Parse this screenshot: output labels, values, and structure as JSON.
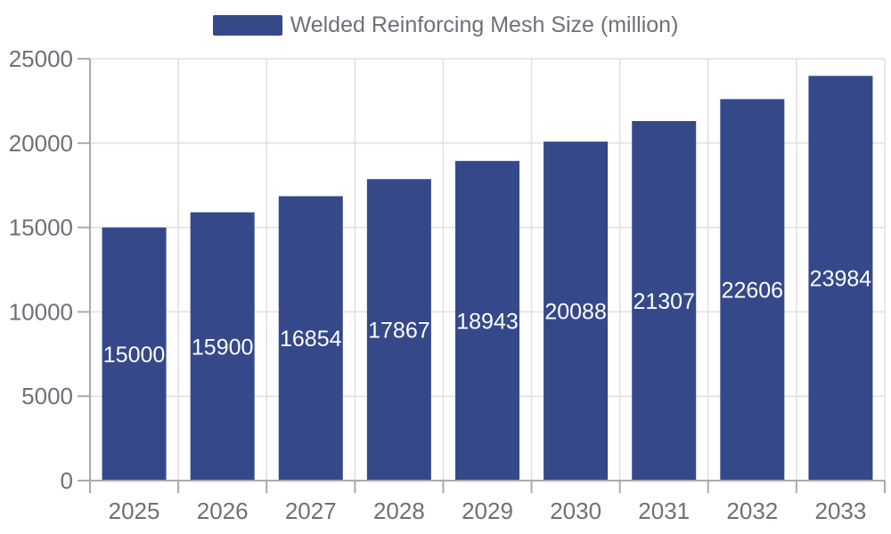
{
  "chart_data": {
    "type": "bar",
    "categories": [
      "2025",
      "2026",
      "2027",
      "2028",
      "2029",
      "2030",
      "2031",
      "2032",
      "2033"
    ],
    "series": [
      {
        "name": "Welded Reinforcing Mesh Size (million)",
        "values": [
          15000,
          15900,
          16854,
          17867,
          18943,
          20088,
          21307,
          22606,
          23984
        ]
      }
    ],
    "xlabel": "",
    "ylabel": "",
    "ylim": [
      0,
      25000
    ],
    "yticks": [
      0,
      5000,
      10000,
      15000,
      20000,
      25000
    ],
    "grid": true,
    "legend_position": "top",
    "colors": {
      "bar": "#35498a",
      "bar_label": "#ffffff",
      "axis_text": "#6e7079",
      "legend_text": "#6e7079",
      "grid_line": "#e0e0e0",
      "axis_line": "#aaaaaa",
      "background": "#ffffff"
    }
  }
}
